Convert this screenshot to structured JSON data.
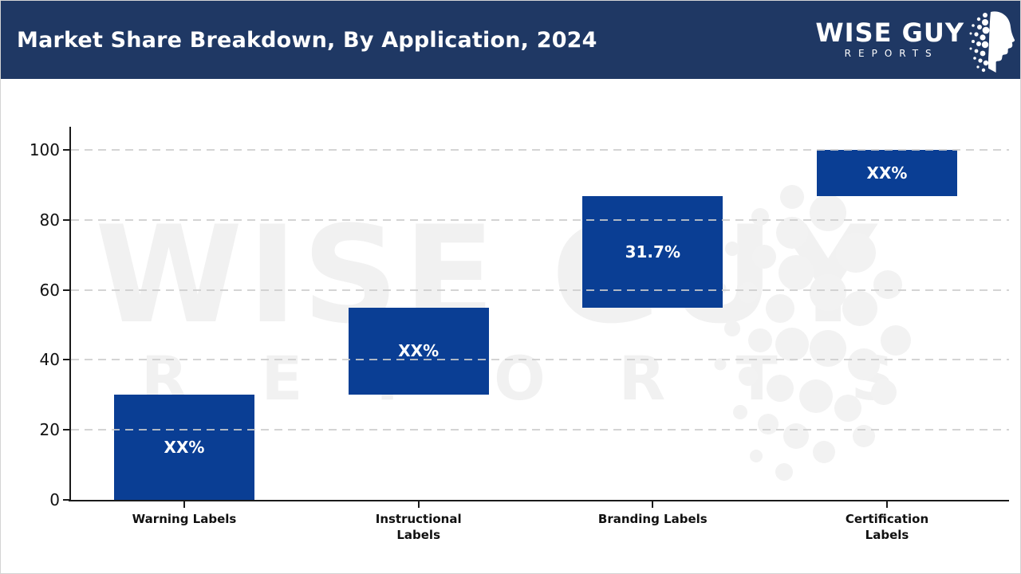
{
  "header": {
    "title": "Market Share Breakdown, By Application, 2024",
    "bg_color": "#1f3864",
    "logo": {
      "wordmark": "WISE GUY",
      "subtext": "REPORTS"
    }
  },
  "watermark": {
    "line1": "WISE GUY",
    "line2": "REPORTS"
  },
  "chart_data": {
    "type": "bar",
    "subtype": "floating-segment-waterfall",
    "title": "Market Share Breakdown, By Application, 2024",
    "categories": [
      "Warning Labels",
      "Instructional Labels",
      "Branding Labels",
      "Certification Labels"
    ],
    "category_lines": [
      [
        "Warning Labels"
      ],
      [
        "Instructional",
        "Labels"
      ],
      [
        "Branding Labels"
      ],
      [
        "Certification",
        "Labels"
      ]
    ],
    "series": [
      {
        "name": "Market Share %",
        "segments": [
          {
            "category": "Warning Labels",
            "start": 0,
            "end": 30,
            "label": "XX%"
          },
          {
            "category": "Instructional Labels",
            "start": 30,
            "end": 55,
            "label": "XX%"
          },
          {
            "category": "Branding Labels",
            "start": 55,
            "end": 86.7,
            "label": "31.7%"
          },
          {
            "category": "Certification Labels",
            "start": 86.7,
            "end": 100,
            "label": "XX%"
          }
        ]
      }
    ],
    "xlabel": "",
    "ylabel": "",
    "ylim": [
      0,
      100
    ],
    "yticks": [
      0,
      20,
      40,
      60,
      80,
      100
    ],
    "grid": "horizontal-dashed-over-bars",
    "legend": "none",
    "bar_color": "#0a3e94",
    "value_label_color": "#ffffff",
    "grid_color": "#d9d9d9",
    "axis_color": "#1a1a1a"
  }
}
